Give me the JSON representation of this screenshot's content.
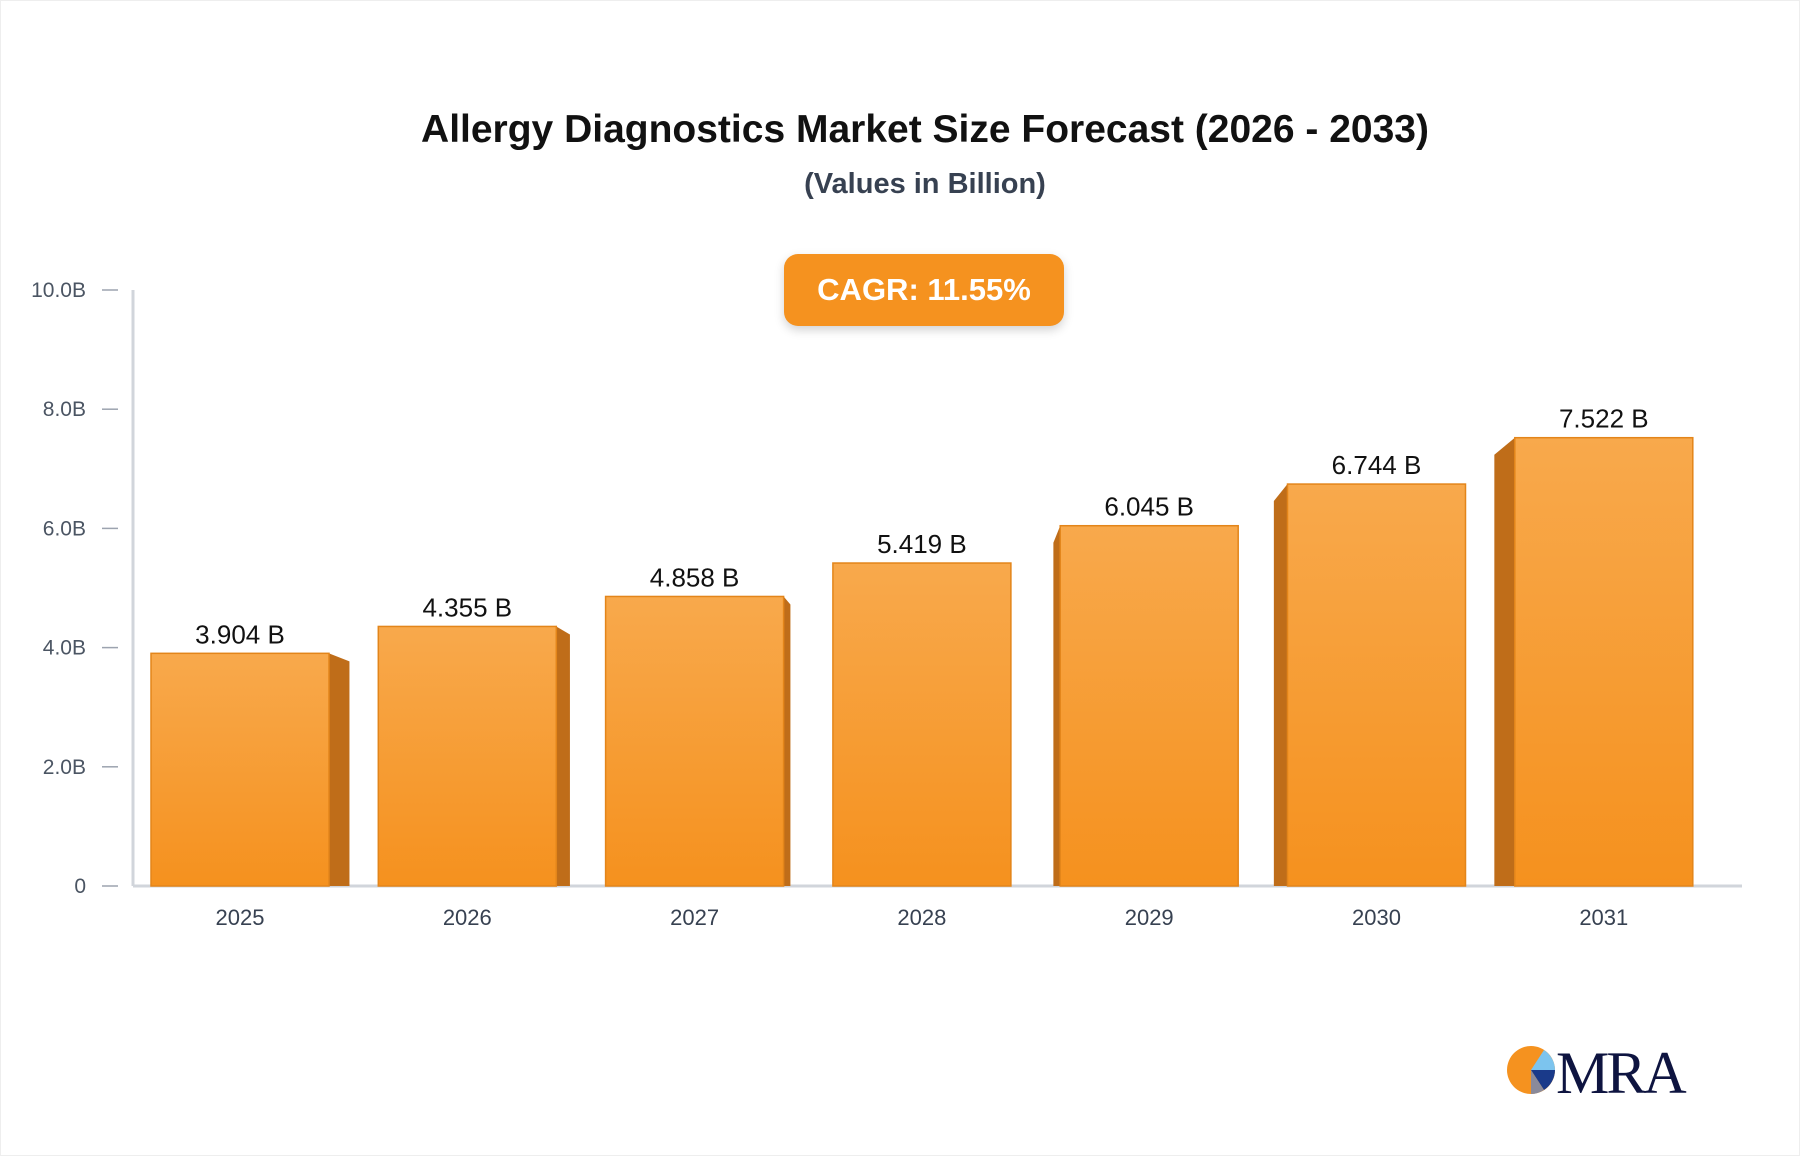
{
  "chart_data": {
    "type": "bar",
    "title": "Allergy Diagnostics Market Size Forecast (2026 - 2033)",
    "subtitle": "(Values in Billion)",
    "annotation": "CAGR: 11.55%",
    "categories": [
      "2025",
      "2026",
      "2027",
      "2028",
      "2029",
      "2030",
      "2031"
    ],
    "values": [
      3.904,
      4.355,
      4.858,
      5.419,
      6.045,
      6.744,
      7.522
    ],
    "data_labels": [
      "3.904 B",
      "4.355 B",
      "4.858 B",
      "5.419 B",
      "6.045 B",
      "6.744 B",
      "7.522 B"
    ],
    "yticks": [
      0,
      2,
      4,
      6,
      8,
      10
    ],
    "ytick_labels": [
      "0",
      "2.0B",
      "4.0B",
      "6.0B",
      "8.0B",
      "10.0B"
    ],
    "ylim": [
      0,
      10
    ],
    "xlabel": "",
    "ylabel": "",
    "grid": false,
    "colors": {
      "bar_top": "#f8a94c",
      "bar_bottom": "#f5911e",
      "bar_side": "#bf6d19",
      "bar_edge": "#e3851a",
      "annotation_bg": "#f5921f"
    }
  },
  "logo": {
    "text": "MRA"
  }
}
